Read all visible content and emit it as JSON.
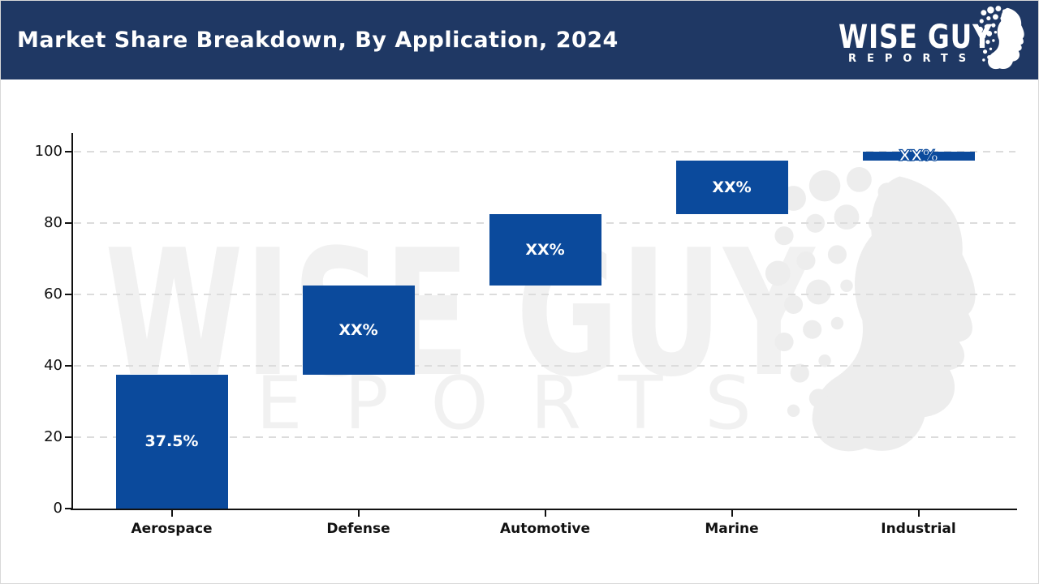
{
  "header": {
    "title": "Market Share Breakdown, By Application, 2024",
    "logo": {
      "line1": "WISE GUY",
      "line2": "REPORTS"
    }
  },
  "watermark": {
    "line1": "WISE GUY",
    "line2": "REPORTS"
  },
  "chart_data": {
    "type": "bar",
    "subtype": "waterfall",
    "title": "Market Share Breakdown, By Application, 2024",
    "xlabel": "",
    "ylabel": "",
    "categories": [
      "Aerospace",
      "Defense",
      "Automotive",
      "Marine",
      "Industrial"
    ],
    "segments": [
      {
        "category": "Aerospace",
        "start": 0,
        "end": 37.5,
        "label": "37.5%"
      },
      {
        "category": "Defense",
        "start": 37.5,
        "end": 62.5,
        "label": "XX%"
      },
      {
        "category": "Automotive",
        "start": 62.5,
        "end": 82.5,
        "label": "XX%"
      },
      {
        "category": "Marine",
        "start": 82.5,
        "end": 97.5,
        "label": "XX%"
      },
      {
        "category": "Industrial",
        "start": 97.5,
        "end": 100,
        "label": "XX%"
      }
    ],
    "yticks": [
      0,
      20,
      40,
      60,
      80,
      100
    ],
    "ylim": [
      0,
      105
    ],
    "grid": true,
    "legend": false,
    "colors": {
      "bar": "#0b4a9c",
      "bar_label": "#ffffff",
      "header_bg": "#1f3864",
      "grid": "#dcdcdc",
      "axis": "#111111",
      "watermark": "#f1f1f1"
    }
  }
}
